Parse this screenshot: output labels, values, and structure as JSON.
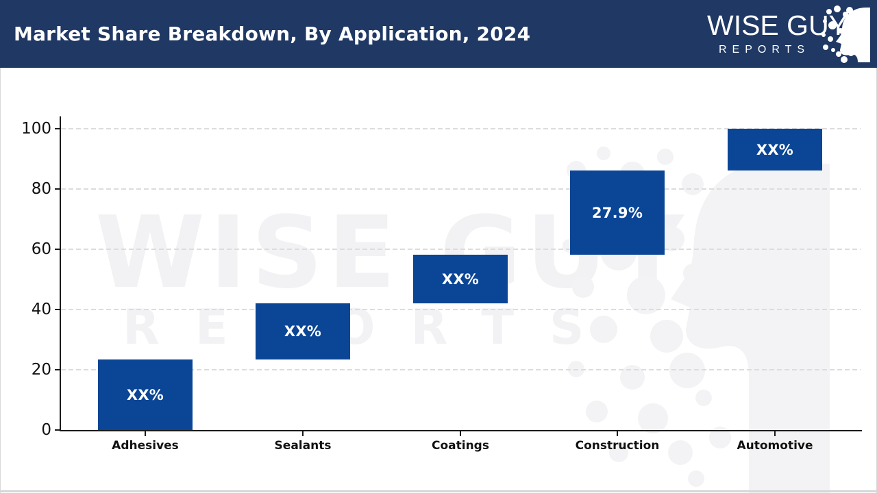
{
  "header": {
    "logo_line1": "WISE GUY",
    "logo_line2": "REPORTS"
  },
  "watermark": {
    "line1": "WISE GUY",
    "line2": "REPORTS"
  },
  "chart_data": {
    "type": "bar",
    "subtype": "waterfall-floating-bars",
    "title": "Market Share Breakdown, By Application, 2024",
    "xlabel": "",
    "ylabel": "",
    "categories": [
      "Adhesives",
      "Sealants",
      "Coatings",
      "Construction",
      "Automotive"
    ],
    "segments": [
      {
        "category": "Adhesives",
        "start": 0,
        "end": 23.4,
        "label": "XX%"
      },
      {
        "category": "Sealants",
        "start": 23.4,
        "end": 42.0,
        "label": "XX%"
      },
      {
        "category": "Coatings",
        "start": 42.0,
        "end": 58.2,
        "label": "XX%"
      },
      {
        "category": "Construction",
        "start": 58.2,
        "end": 86.1,
        "label": "27.9%"
      },
      {
        "category": "Automotive",
        "start": 86.1,
        "end": 100.0,
        "label": "XX%"
      }
    ],
    "yticks": [
      0,
      20,
      40,
      60,
      80,
      100
    ],
    "ylim": [
      0,
      104
    ],
    "grid": "horizontal-dashed",
    "legend": "none",
    "colors": {
      "bar": "#0A4596",
      "header_bg": "#1F3864",
      "bar_label_text": "#FFFFFF",
      "axis": "#1A1A1A",
      "gridline": "#DCDCDC",
      "watermark": "#F2F2F4"
    }
  }
}
